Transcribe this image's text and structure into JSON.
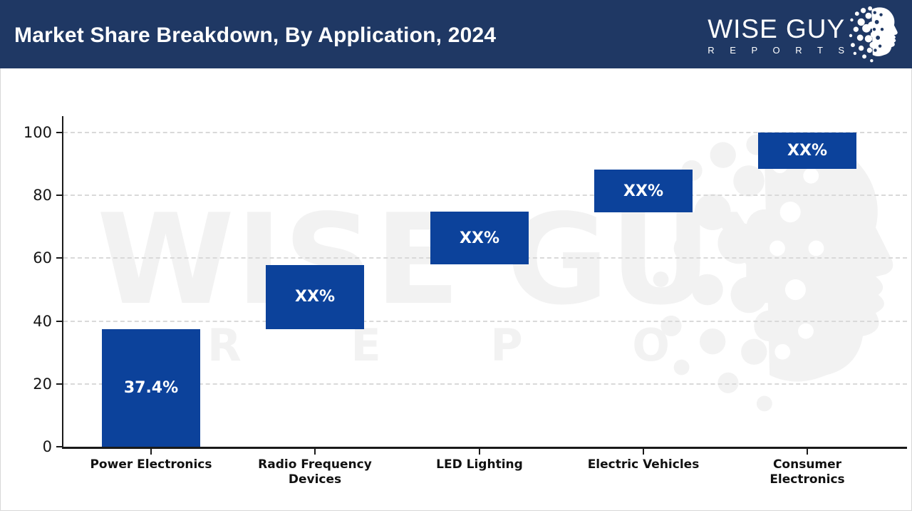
{
  "header": {
    "title": "Market Share Breakdown, By Application, 2024",
    "bg_color": "#1F3864",
    "logo": {
      "wordmark": "WISE GUY",
      "subtext": "R E P O R T S"
    }
  },
  "watermark": {
    "wordmark": "WISE GUY",
    "subtext": "R E P O R T S"
  },
  "chart_data": {
    "type": "bar",
    "subtype": "floating-waterfall",
    "title": "Market Share Breakdown, By Application, 2024",
    "categories": [
      "Power Electronics",
      "Radio Frequency Devices",
      "LED Lighting",
      "Electric Vehicles",
      "Consumer Electronics"
    ],
    "category_lines": [
      [
        "Power Electronics"
      ],
      [
        "Radio Frequency",
        "Devices"
      ],
      [
        "LED Lighting"
      ],
      [
        "Electric Vehicles"
      ],
      [
        "Consumer",
        "Electronics"
      ]
    ],
    "segments": [
      {
        "category": "Power Electronics",
        "label": "37.4%",
        "start": 0,
        "end": 37.4
      },
      {
        "category": "Radio Frequency Devices",
        "label": "XX%",
        "start": 37.4,
        "end": 57.9
      },
      {
        "category": "LED Lighting",
        "label": "XX%",
        "start": 58,
        "end": 74.8
      },
      {
        "category": "Electric Vehicles",
        "label": "XX%",
        "start": 74.6,
        "end": 88.2
      },
      {
        "category": "Consumer Electronics",
        "label": "XX%",
        "start": 88.4,
        "end": 100
      }
    ],
    "xlabel": "",
    "ylabel": "",
    "yticks": [
      0,
      20,
      40,
      60,
      80,
      100
    ],
    "ylim": [
      0,
      105
    ],
    "grid": {
      "axis": "y",
      "style": "dashed",
      "color": "#D9D9D9"
    },
    "legend": "none",
    "bar_color": "#0C429B",
    "bar_label_color": "#FFFFFF",
    "axis_color": "#1a1a1a"
  }
}
